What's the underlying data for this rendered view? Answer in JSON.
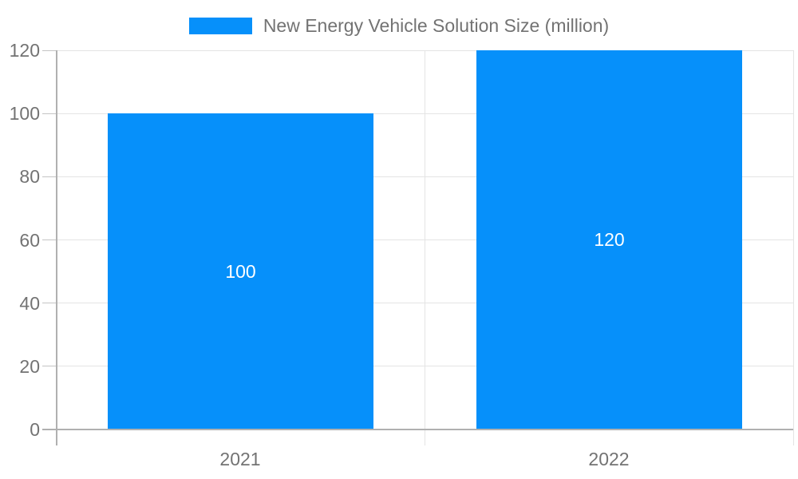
{
  "legend": {
    "label": "New Energy Vehicle Solution Size (million)"
  },
  "chart_data": {
    "type": "bar",
    "title": "",
    "categories": [
      "2021",
      "2022"
    ],
    "series": [
      {
        "name": "New Energy Vehicle Solution Size (million)",
        "values": [
          100,
          120
        ]
      }
    ],
    "bar_labels": [
      "100",
      "120"
    ],
    "xlabel": "",
    "ylabel": "",
    "ylim": [
      0,
      120
    ],
    "yticks": [
      0,
      20,
      40,
      60,
      80,
      100,
      120
    ],
    "grid": true,
    "legend_position": "top-center",
    "colors": {
      "bar": "#0690fa",
      "grid": "#e4e4e4",
      "axis": "#b0b0b0",
      "tick": "#c4c4c4",
      "text": "#737373",
      "bar_label": "#ffffff"
    }
  }
}
